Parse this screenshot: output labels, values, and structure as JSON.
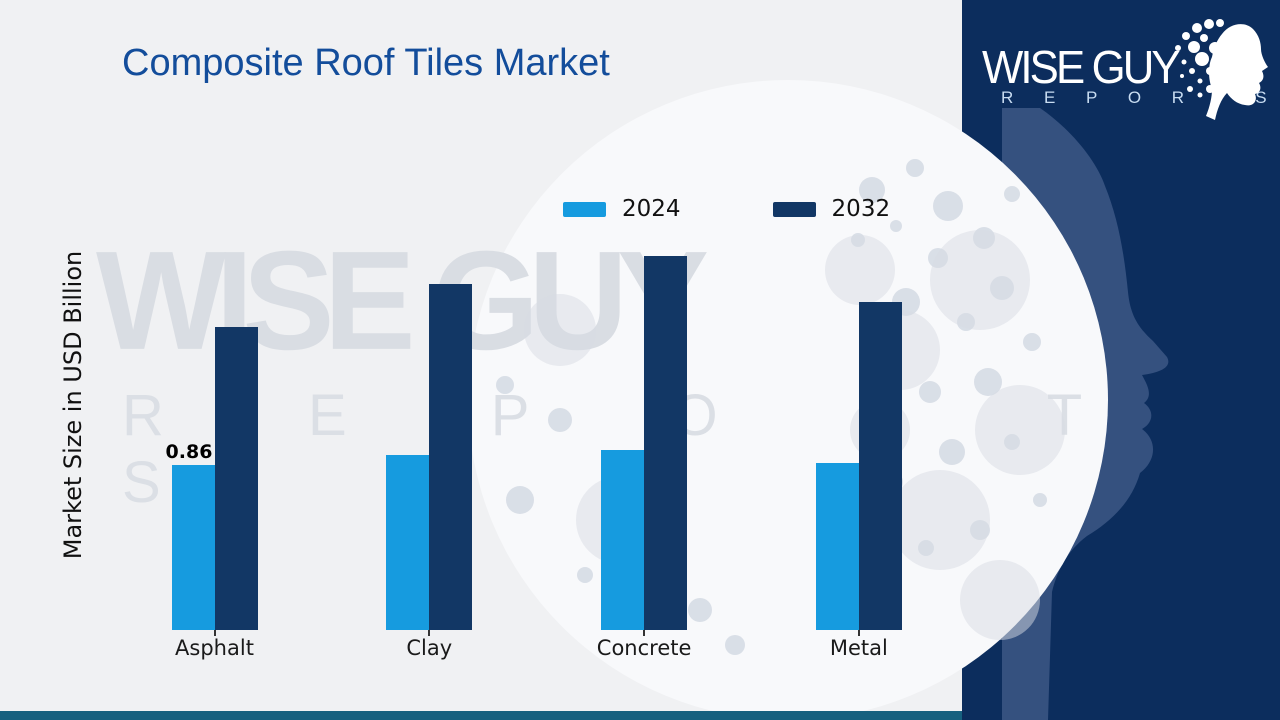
{
  "page": {
    "title": "Composite Roof Tiles Market"
  },
  "branding": {
    "logo_primary": "WISE GUY",
    "logo_secondary": "R E P O R T S",
    "watermark_primary": "WISE GUY",
    "watermark_secondary": "R E P O R T S"
  },
  "colors": {
    "title_blue": "#134d9b",
    "series_2024": "#169bdf",
    "series_2032": "#123765",
    "navy_band": "#0c2d5d",
    "face_silhouette": "#35517f",
    "teal_strip": "#16607f",
    "watermark_gray": "#d9dde3",
    "page_background": "#f0f1f3"
  },
  "chart_data": {
    "type": "bar",
    "title": "Composite Roof Tiles Market",
    "xlabel": "",
    "ylabel": "Market Size in USD Billion",
    "categories": [
      "Asphalt",
      "Clay",
      "Concrete",
      "Metal"
    ],
    "series": [
      {
        "name": "2024",
        "color": "#169bdf",
        "values": [
          0.86,
          0.91,
          0.94,
          0.87
        ]
      },
      {
        "name": "2032",
        "color": "#123765",
        "values": [
          1.58,
          1.8,
          1.95,
          1.71
        ]
      }
    ],
    "data_labels": [
      {
        "category": "Asphalt",
        "series": "2024",
        "text": "0.86"
      }
    ],
    "ylim": [
      0,
      2.1
    ],
    "grid": false,
    "legend_position": "top-center",
    "y_axis_ticks_visible": false
  }
}
